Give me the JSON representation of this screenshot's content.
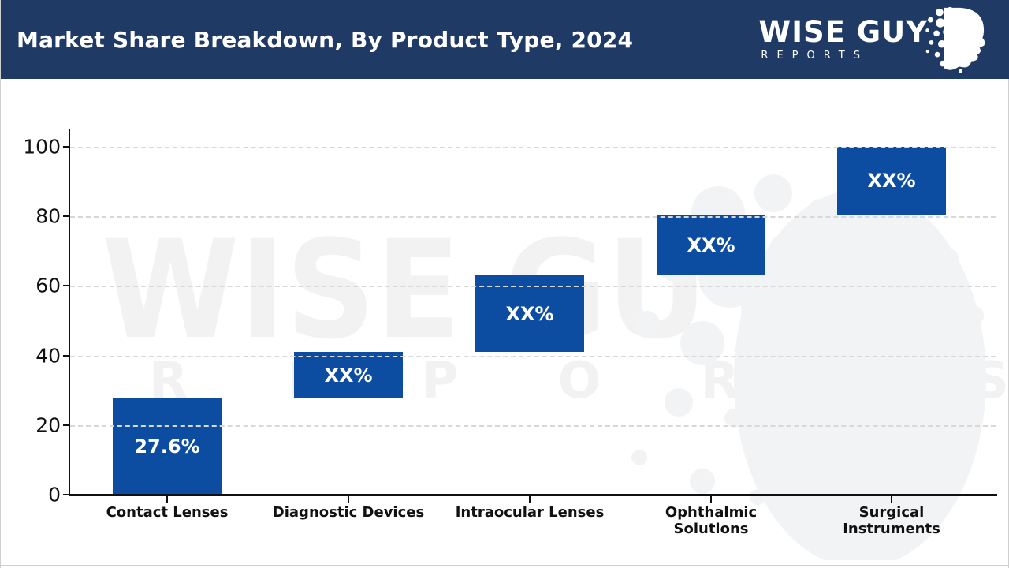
{
  "header": {
    "title": "Market Share Breakdown, By Product Type, 2024",
    "logo": {
      "line1": "WISE GUY",
      "line2": "REPORTS"
    }
  },
  "watermark": {
    "line1": "WISE GUY",
    "line2": "R E P O R T S"
  },
  "chart_data": {
    "type": "bar",
    "subtype": "waterfall",
    "title": "Market Share Breakdown, By Product Type, 2024",
    "categories": [
      "Contact Lenses",
      "Diagnostic Devices",
      "Intraocular Lenses",
      "Ophthalmic Solutions",
      "Surgical Instruments"
    ],
    "category_lines": [
      [
        "Contact Lenses"
      ],
      [
        "Diagnostic Devices"
      ],
      [
        "Intraocular Lenses"
      ],
      [
        "Ophthalmic",
        "Solutions"
      ],
      [
        "Surgical",
        "Instruments"
      ]
    ],
    "bars": [
      {
        "category": "Contact Lenses",
        "label": "27.6%",
        "start": 0,
        "end": 27.6
      },
      {
        "category": "Diagnostic Devices",
        "label": "XX%",
        "start": 27.6,
        "end": 41
      },
      {
        "category": "Intraocular Lenses",
        "label": "XX%",
        "start": 41,
        "end": 63
      },
      {
        "category": "Ophthalmic Solutions",
        "label": "XX%",
        "start": 63,
        "end": 80.5
      },
      {
        "category": "Surgical Instruments",
        "label": "XX%",
        "start": 80.5,
        "end": 100
      }
    ],
    "yticks": [
      0,
      20,
      40,
      60,
      80,
      100
    ],
    "ylim": [
      0,
      100
    ],
    "grid": "dashed horizontal",
    "legend": "none",
    "bar_color": "#0C4DA2",
    "bar_label_color": "#FFFFFF"
  },
  "colors": {
    "header_bg": "#203A66",
    "bar": "#0C4DA2",
    "grid": "#D8D8D8",
    "axis": "#111111",
    "watermark": "#F2F2F3"
  }
}
